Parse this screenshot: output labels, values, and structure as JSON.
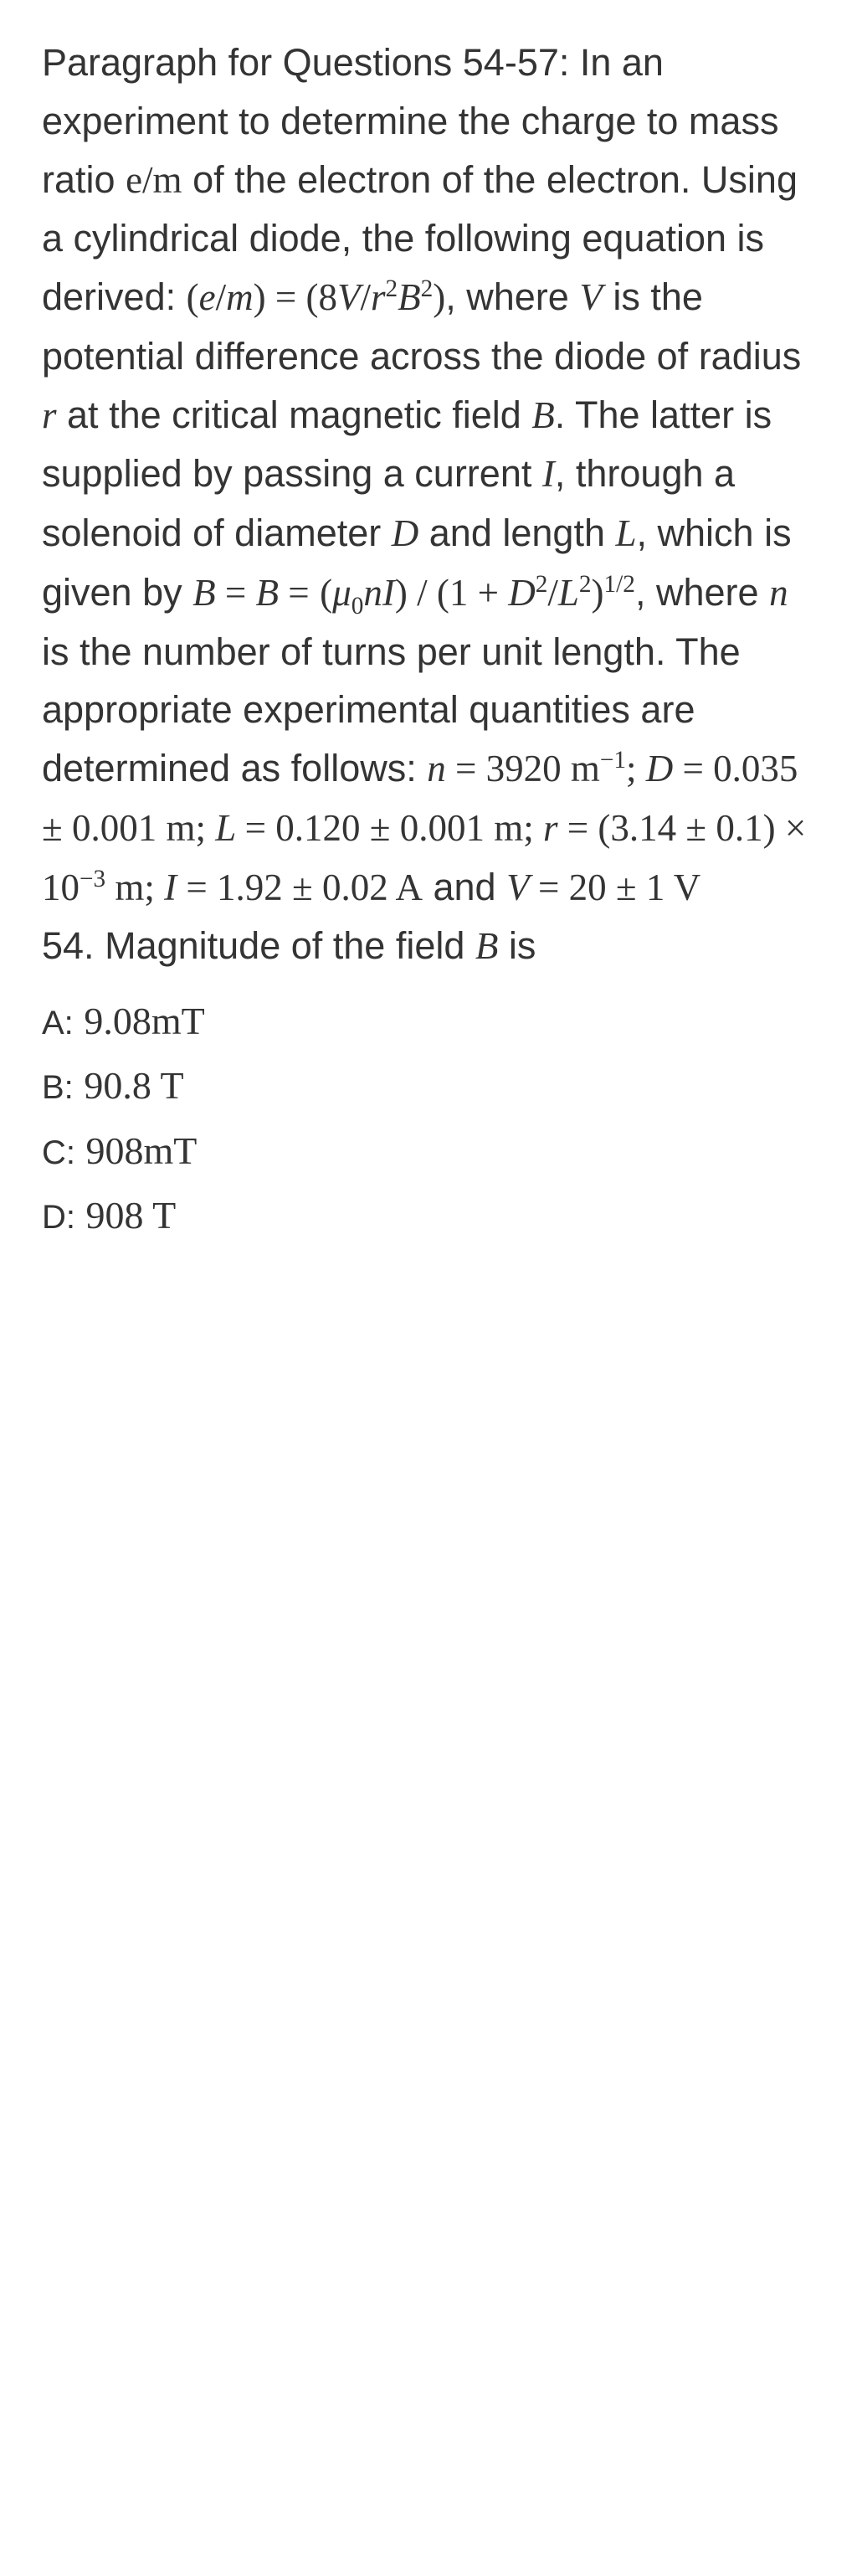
{
  "paragraph": {
    "intro_1": "Paragraph for Questions 54-57: In an experiment to determine the charge to mass ratio",
    "em_ratio": "e/m",
    "intro_2": "of the electron of the electron. Using a cylindrical diode, the following equation is derived:",
    "eq1_lhs": "(e/m) = ",
    "eq1_rhs_open": "(8V/r",
    "eq1_rhs_b": "B",
    "eq1_rhs_close": ")",
    "where1": ", where",
    "V": "V",
    "after_V": "is the potential difference across the diode of radius",
    "r": "r",
    "after_r": "at the critical magnetic field",
    "B": "B",
    "after_B": ". The latter is supplied by passing a current",
    "I": "I",
    "after_I": ", through a solenoid of diameter",
    "D": "D",
    "after_D": "and length",
    "L": "L",
    "after_L": ", which is given by",
    "eq2_line1": "B = B =",
    "eq2_mu": "(μ",
    "eq2_nI": "nI) / ",
    "eq2_paren_open": "(1 + D",
    "eq2_slash_L": "/L",
    "eq2_paren_close": ")",
    "eq2_exp": "1/2",
    "after_eq2_comma": ",",
    "where_n": "where",
    "n": "n",
    "after_n": "is the number of turns per unit length. The appropriate experimental quantities are determined as follows:",
    "data_n": "n = 3920 m",
    "data_n_exp": "−1",
    "data_semi1": "; D = 0.035 ± 0.001 m; L = 0.120 ± 0.001 m; r = (3.14 ± 0.1) × 10",
    "data_r_exp": "−3",
    "data_after_r": " m; I = 1.92 ± 0.02 A",
    "data_and": "and",
    "data_V": "V = 20 ± 1 V"
  },
  "question": {
    "number": "54.",
    "text": "Magnitude of the field",
    "var": "B",
    "is": "is"
  },
  "options": {
    "A": {
      "label": "A:",
      "value": "9.08mT"
    },
    "B": {
      "label": "B:",
      "value": "90.8 T"
    },
    "C": {
      "label": "C:",
      "value": "908mT"
    },
    "D": {
      "label": "D:",
      "value": "908 T"
    }
  },
  "colors": {
    "text": "#343434",
    "background": "#ffffff"
  }
}
